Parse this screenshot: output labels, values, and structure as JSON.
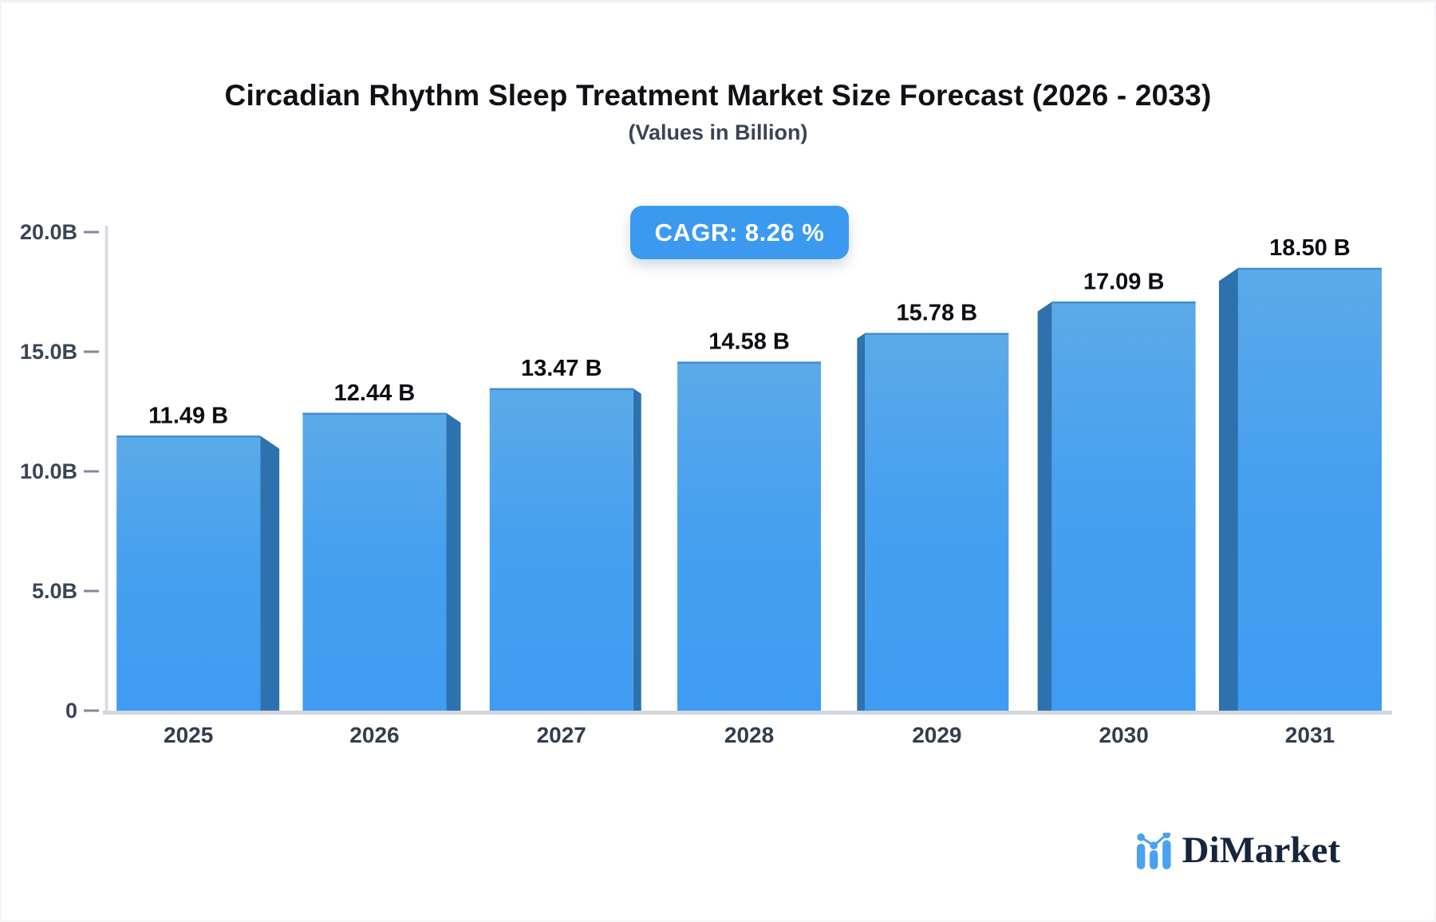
{
  "header": {
    "title": "Circadian Rhythm Sleep Treatment Market Size Forecast (2026 - 2033)",
    "subtitle": "(Values in Billion)",
    "cagr_label": "CAGR: 8.26 %"
  },
  "badge": {
    "bg": "#3B99F0",
    "text_color": "#FFFFFF"
  },
  "chart_data": {
    "type": "bar",
    "title": "Circadian Rhythm Sleep Treatment Market Size Forecast (2026 - 2033)",
    "subtitle": "(Values in Billion)",
    "categories": [
      "2025",
      "2026",
      "2027",
      "2028",
      "2029",
      "2030",
      "2031"
    ],
    "values": [
      11.49,
      12.44,
      13.47,
      14.58,
      15.78,
      17.09,
      18.5
    ],
    "value_labels": [
      "11.49 B",
      "12.44 B",
      "13.47 B",
      "14.58 B",
      "15.78 B",
      "17.09 B",
      "18.50 B"
    ],
    "annotation": "CAGR: 8.26 %",
    "xlabel": "",
    "ylabel": "",
    "ylim": [
      0,
      20
    ],
    "yticks": [
      {
        "label": "20.0B",
        "value": 20
      },
      {
        "label": "15.0B",
        "value": 15
      },
      {
        "label": "10.0B",
        "value": 10
      },
      {
        "label": "5.0B",
        "value": 5
      },
      {
        "label": "0",
        "value": 0
      }
    ],
    "grid": false,
    "legend": false,
    "style": "pseudo-3d bars, perspective toward center bar",
    "colors": {
      "bar_face_top": "#5CAAE8",
      "bar_face_mid": "#47A0EF",
      "bar_face_bottom": "#3E9CF2",
      "bar_top_edge": "#3E8CCD",
      "bar_side": "#2D72AE",
      "axis_line": "#DADDE3",
      "baseline": "#D2D6DC",
      "tick_dash": "#808B99",
      "y_tick_label": "#3A4554",
      "x_tick_label": "#323D4D",
      "value_label": "#0B0D12"
    }
  },
  "footer": {
    "brand": "DiMarket",
    "brand_color": "#16243C",
    "icon": "mini-bar-chart-with-dots-icon",
    "icon_color": "#4AA1F3"
  }
}
